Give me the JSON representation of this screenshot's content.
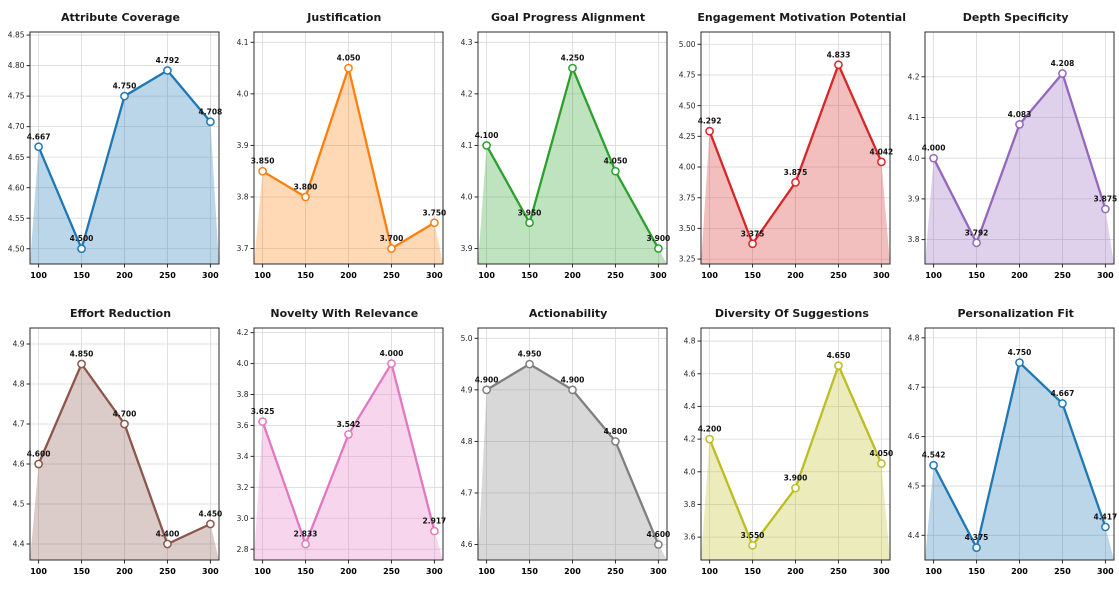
{
  "figure": {
    "background": "#ffffff",
    "grid_color": "#d9d9d9",
    "spine_color": "#2b2b2b",
    "tick_label_color": "#262626",
    "layout": "2 rows x 5 columns of area charts"
  },
  "chart_data": [
    {
      "type": "area",
      "title": "Attribute Coverage",
      "color": "#1f77b4",
      "x": [
        100,
        150,
        200,
        250,
        300
      ],
      "xtick_labels": [
        "100",
        "150",
        "200",
        "250",
        "300"
      ],
      "xlim": [
        90,
        310
      ],
      "values": [
        4.667,
        4.5,
        4.75,
        4.792,
        4.708
      ],
      "point_labels": [
        "4.667",
        "4.500",
        "4.750",
        "4.792",
        "4.708"
      ],
      "yticks": [
        4.5,
        4.55,
        4.6,
        4.65,
        4.7,
        4.75,
        4.8,
        4.85
      ],
      "ytick_labels": [
        "4.50",
        "4.55",
        "4.60",
        "4.65",
        "4.70",
        "4.75",
        "4.80",
        "4.85"
      ],
      "ylim": [
        4.475,
        4.855
      ],
      "grid": true,
      "fill_opacity": 0.3
    },
    {
      "type": "area",
      "title": "Justification",
      "color": "#ff7f0e",
      "x": [
        100,
        150,
        200,
        250,
        300
      ],
      "xtick_labels": [
        "100",
        "150",
        "200",
        "250",
        "300"
      ],
      "xlim": [
        90,
        310
      ],
      "values": [
        3.85,
        3.8,
        4.05,
        3.7,
        3.75
      ],
      "point_labels": [
        "3.850",
        "3.800",
        "4.050",
        "3.700",
        "3.750"
      ],
      "yticks": [
        3.7,
        3.8,
        3.9,
        4.0,
        4.1
      ],
      "ytick_labels": [
        "3.7",
        "3.8",
        "3.9",
        "4.0",
        "4.1"
      ],
      "ylim": [
        3.67,
        4.12
      ],
      "grid": true,
      "fill_opacity": 0.3
    },
    {
      "type": "area",
      "title": "Goal Progress Alignment",
      "color": "#2ca02c",
      "x": [
        100,
        150,
        200,
        250,
        300
      ],
      "xtick_labels": [
        "100",
        "150",
        "200",
        "250",
        "300"
      ],
      "xlim": [
        90,
        310
      ],
      "values": [
        4.1,
        3.95,
        4.25,
        4.05,
        3.9
      ],
      "point_labels": [
        "4.100",
        "3.950",
        "4.250",
        "4.050",
        "3.900"
      ],
      "yticks": [
        3.9,
        4.0,
        4.1,
        4.2,
        4.3
      ],
      "ytick_labels": [
        "3.9",
        "4.0",
        "4.1",
        "4.2",
        "4.3"
      ],
      "ylim": [
        3.87,
        4.32
      ],
      "grid": true,
      "fill_opacity": 0.3
    },
    {
      "type": "area",
      "title": "Engagement Motivation Potential",
      "color": "#d62728",
      "x": [
        100,
        150,
        200,
        250,
        300
      ],
      "xtick_labels": [
        "100",
        "150",
        "200",
        "250",
        "300"
      ],
      "xlim": [
        90,
        310
      ],
      "values": [
        4.292,
        3.375,
        3.875,
        4.833,
        4.042
      ],
      "point_labels": [
        "4.292",
        "3.375",
        "3.875",
        "4.833",
        "4.042"
      ],
      "yticks": [
        3.25,
        3.5,
        3.75,
        4.0,
        4.25,
        4.5,
        4.75,
        5.0
      ],
      "ytick_labels": [
        "3.25",
        "3.50",
        "3.75",
        "4.00",
        "4.25",
        "4.50",
        "4.75",
        "5.00"
      ],
      "ylim": [
        3.21,
        5.1
      ],
      "grid": true,
      "fill_opacity": 0.3
    },
    {
      "type": "area",
      "title": "Depth Specificity",
      "color": "#9467bd",
      "x": [
        100,
        150,
        200,
        250,
        300
      ],
      "xtick_labels": [
        "100",
        "150",
        "200",
        "250",
        "300"
      ],
      "xlim": [
        90,
        310
      ],
      "values": [
        4.0,
        3.792,
        4.083,
        4.208,
        3.875
      ],
      "point_labels": [
        "4.000",
        "3.792",
        "4.083",
        "4.208",
        "3.875"
      ],
      "yticks": [
        3.8,
        3.9,
        4.0,
        4.1,
        4.2
      ],
      "ytick_labels": [
        "3.8",
        "3.9",
        "4.0",
        "4.1",
        "4.2"
      ],
      "ylim": [
        3.74,
        4.31
      ],
      "grid": true,
      "fill_opacity": 0.3
    },
    {
      "type": "area",
      "title": "Effort Reduction",
      "color": "#8c564b",
      "x": [
        100,
        150,
        200,
        250,
        300
      ],
      "xtick_labels": [
        "100",
        "150",
        "200",
        "250",
        "300"
      ],
      "xlim": [
        90,
        310
      ],
      "values": [
        4.6,
        4.85,
        4.7,
        4.4,
        4.45
      ],
      "point_labels": [
        "4.600",
        "4.850",
        "4.700",
        "4.400",
        "4.450"
      ],
      "yticks": [
        4.4,
        4.5,
        4.6,
        4.7,
        4.8,
        4.9
      ],
      "ytick_labels": [
        "4.4",
        "4.5",
        "4.6",
        "4.7",
        "4.8",
        "4.9"
      ],
      "ylim": [
        4.36,
        4.94
      ],
      "grid": true,
      "fill_opacity": 0.3
    },
    {
      "type": "area",
      "title": "Novelty With Relevance",
      "color": "#e377c2",
      "x": [
        100,
        150,
        200,
        250,
        300
      ],
      "xtick_labels": [
        "100",
        "150",
        "200",
        "250",
        "300"
      ],
      "xlim": [
        90,
        310
      ],
      "values": [
        3.625,
        2.833,
        3.542,
        4.0,
        2.917
      ],
      "point_labels": [
        "3.625",
        "2.833",
        "3.542",
        "4.000",
        "2.917"
      ],
      "yticks": [
        2.8,
        3.0,
        3.2,
        3.4,
        3.6,
        3.8,
        4.0,
        4.2
      ],
      "ytick_labels": [
        "2.8",
        "3.0",
        "3.2",
        "3.4",
        "3.6",
        "3.8",
        "4.0",
        "4.2"
      ],
      "ylim": [
        2.73,
        4.23
      ],
      "grid": true,
      "fill_opacity": 0.3
    },
    {
      "type": "area",
      "title": "Actionability",
      "color": "#7f7f7f",
      "x": [
        100,
        150,
        200,
        250,
        300
      ],
      "xtick_labels": [
        "100",
        "150",
        "200",
        "250",
        "300"
      ],
      "xlim": [
        90,
        310
      ],
      "values": [
        4.9,
        4.95,
        4.9,
        4.8,
        4.6
      ],
      "point_labels": [
        "4.900",
        "4.950",
        "4.900",
        "4.800",
        "4.600"
      ],
      "yticks": [
        4.6,
        4.7,
        4.8,
        4.9,
        5.0
      ],
      "ytick_labels": [
        "4.6",
        "4.7",
        "4.8",
        "4.9",
        "5.0"
      ],
      "ylim": [
        4.57,
        5.02
      ],
      "grid": true,
      "fill_opacity": 0.3
    },
    {
      "type": "area",
      "title": "Diversity Of Suggestions",
      "color": "#bcbd22",
      "x": [
        100,
        150,
        200,
        250,
        300
      ],
      "xtick_labels": [
        "100",
        "150",
        "200",
        "250",
        "300"
      ],
      "xlim": [
        90,
        310
      ],
      "values": [
        4.2,
        3.55,
        3.9,
        4.65,
        4.05
      ],
      "point_labels": [
        "4.200",
        "3.550",
        "3.900",
        "4.650",
        "4.050"
      ],
      "yticks": [
        3.6,
        3.8,
        4.0,
        4.2,
        4.4,
        4.6,
        4.8
      ],
      "ytick_labels": [
        "3.6",
        "3.8",
        "4.0",
        "4.2",
        "4.4",
        "4.6",
        "4.8"
      ],
      "ylim": [
        3.46,
        4.88
      ],
      "grid": true,
      "fill_opacity": 0.3
    },
    {
      "type": "area",
      "title": "Personalization Fit",
      "color": "#1f77b4",
      "x": [
        100,
        150,
        200,
        250,
        300
      ],
      "xtick_labels": [
        "100",
        "150",
        "200",
        "250",
        "300"
      ],
      "xlim": [
        90,
        310
      ],
      "values": [
        4.542,
        4.375,
        4.75,
        4.667,
        4.417
      ],
      "point_labels": [
        "4.542",
        "4.375",
        "4.750",
        "4.667",
        "4.417"
      ],
      "yticks": [
        4.4,
        4.5,
        4.6,
        4.7,
        4.8
      ],
      "ytick_labels": [
        "4.4",
        "4.5",
        "4.6",
        "4.7",
        "4.8"
      ],
      "ylim": [
        4.35,
        4.82
      ],
      "grid": true,
      "fill_opacity": 0.3
    }
  ]
}
